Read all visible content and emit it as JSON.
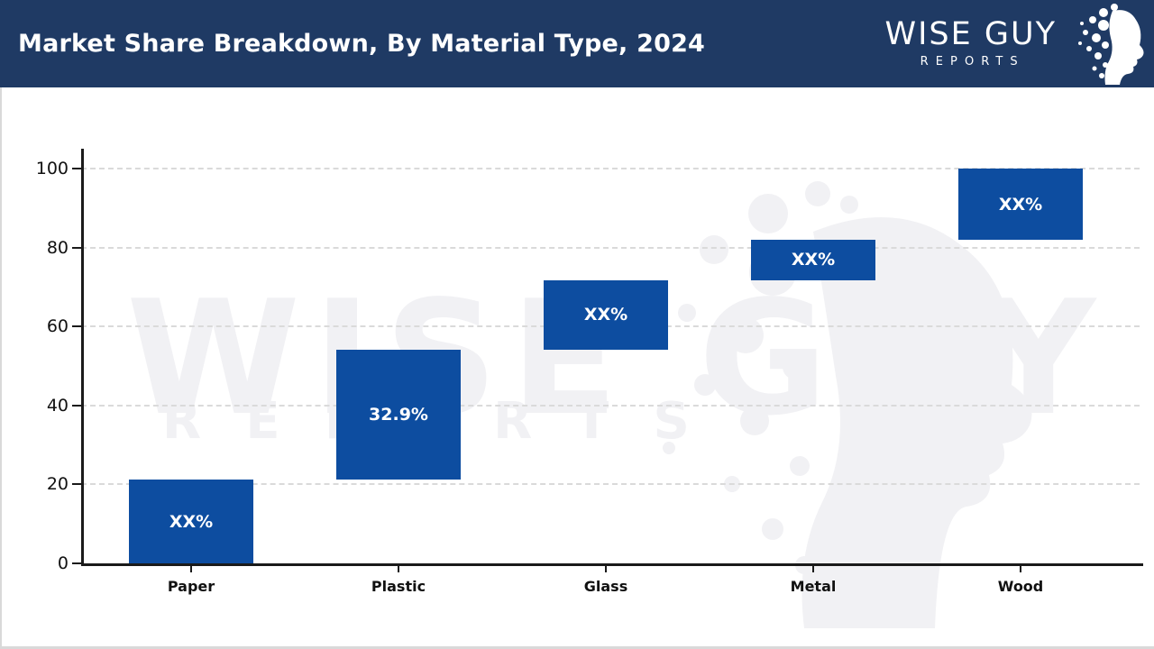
{
  "header": {
    "title": "Market Share Breakdown, By Material Type, 2024",
    "bg_color": "#1f3a64",
    "logo": {
      "line1": "WISE GUY",
      "line2": "REPORTS"
    }
  },
  "watermark": {
    "line1": "WISE GUY",
    "line2": "REPORTS"
  },
  "chart_data": {
    "type": "bar",
    "subtype": "waterfall",
    "title": "Market Share Breakdown, By Material Type, 2024",
    "categories": [
      "Paper",
      "Plastic",
      "Glass",
      "Metal",
      "Wood"
    ],
    "segments": [
      {
        "category": "Paper",
        "start": 0,
        "end": 21.2,
        "label": "XX%"
      },
      {
        "category": "Plastic",
        "start": 21.2,
        "end": 54.1,
        "label": "32.9%"
      },
      {
        "category": "Glass",
        "start": 54.1,
        "end": 71.8,
        "label": "XX%"
      },
      {
        "category": "Metal",
        "start": 71.8,
        "end": 81.9,
        "label": "XX%"
      },
      {
        "category": "Wood",
        "start": 81.9,
        "end": 100,
        "label": "XX%"
      }
    ],
    "xlabel": "",
    "ylabel": "",
    "ylim": [
      0,
      100
    ],
    "yticks": [
      0,
      20,
      40,
      60,
      80,
      100
    ],
    "grid": "horizontal-dashed",
    "legend": "none",
    "bar_color": "#0d4da0",
    "bar_label_color": "#ffffff",
    "axis_color": "#1a1a1a",
    "grid_color": "#dadada"
  }
}
